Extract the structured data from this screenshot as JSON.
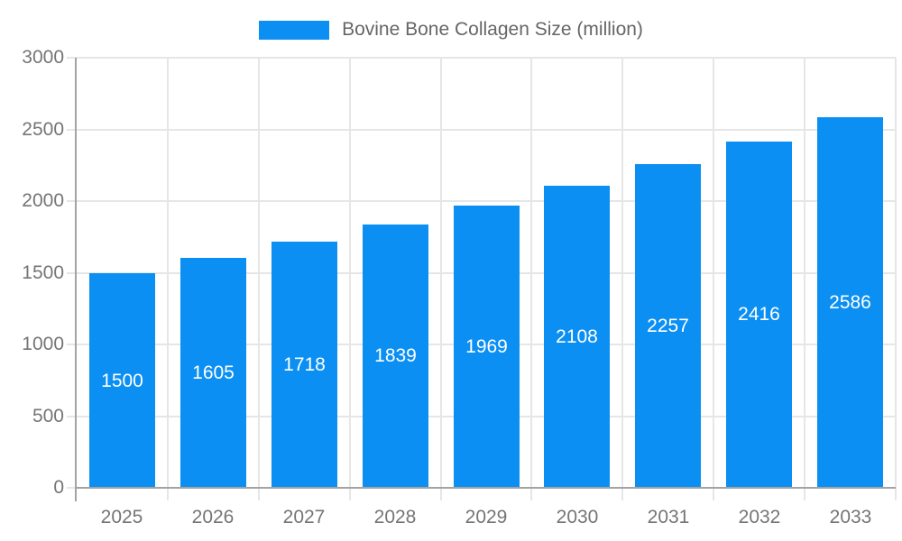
{
  "chart_data": {
    "type": "bar",
    "title": "Bovine Bone Collagen Size (million)",
    "legend_position": "top",
    "categories": [
      "2025",
      "2026",
      "2027",
      "2028",
      "2029",
      "2030",
      "2031",
      "2032",
      "2033"
    ],
    "values": [
      1500,
      1605,
      1718,
      1839,
      1969,
      2108,
      2257,
      2416,
      2586
    ],
    "xlabel": "",
    "ylabel": "",
    "ylim": [
      0,
      3000
    ],
    "yticks": [
      0,
      500,
      1000,
      1500,
      2000,
      2500,
      3000
    ],
    "grid": true,
    "colors": {
      "bar": "#0b8ff2",
      "value_label": "#ffffff",
      "axis_text": "#757575",
      "legend_text": "#666666",
      "grid_line": "#e6e6e6",
      "axis_line": "#a3a3a3",
      "background": "#ffffff"
    }
  }
}
